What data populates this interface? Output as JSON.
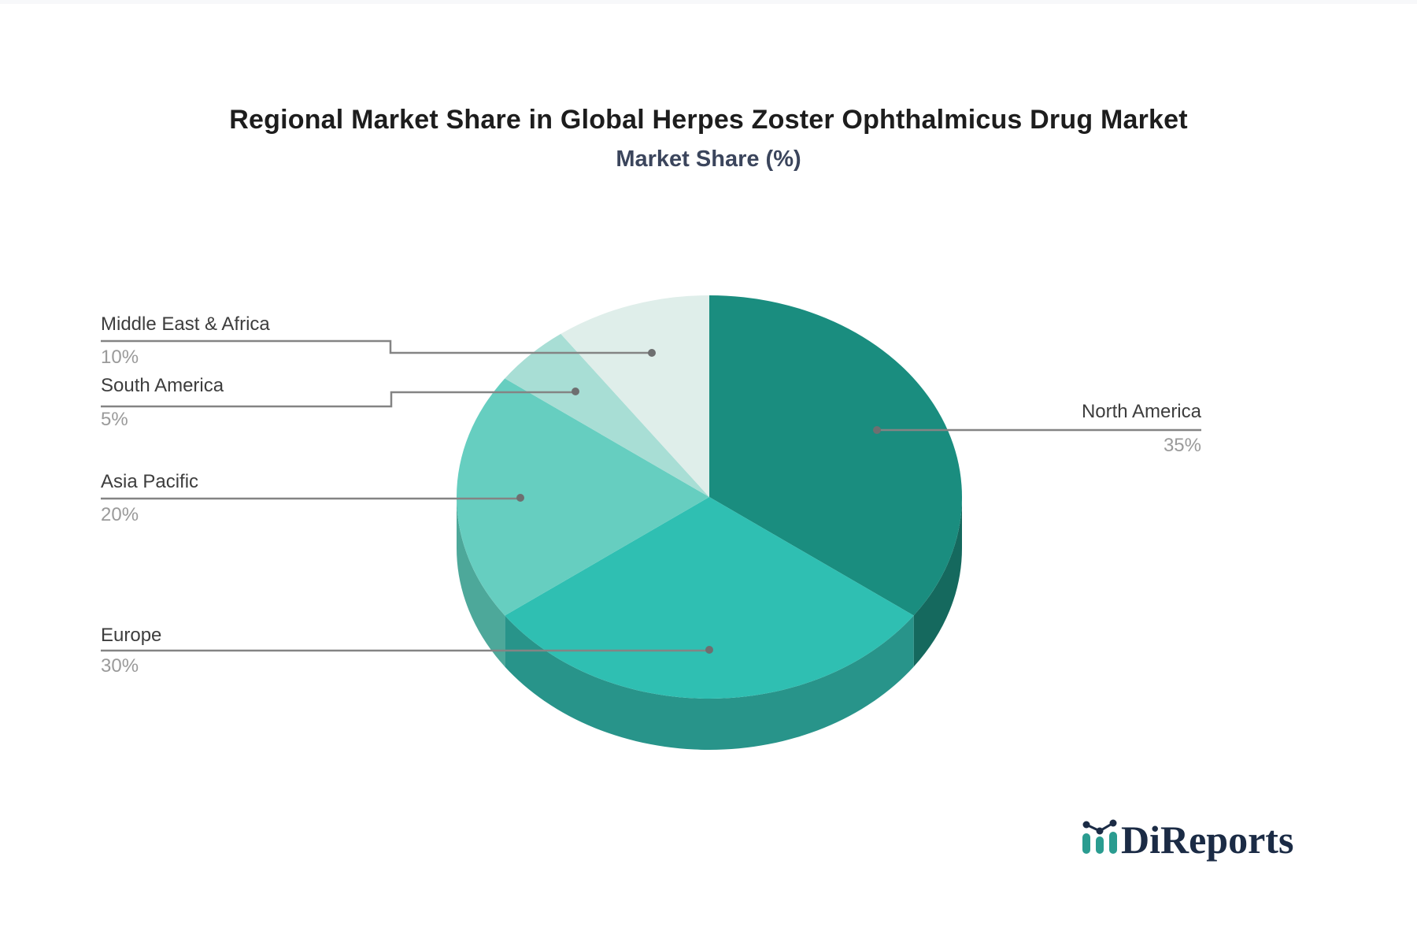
{
  "title": "Regional Market Share in Global Herpes Zoster Ophthalmicus Drug Market",
  "subtitle": "Market Share (%)",
  "chart_data": {
    "type": "pie",
    "style_3d": true,
    "start_angle_deg": 0,
    "direction": "clockwise",
    "unit": "%",
    "labels": [
      "North America",
      "Europe",
      "Asia Pacific",
      "South America",
      "Middle East & Africa"
    ],
    "values": [
      35,
      30,
      20,
      5,
      10
    ],
    "display_values": [
      "35%",
      "30%",
      "20%",
      "5%",
      "10%"
    ],
    "colors": [
      "#1a8d7f",
      "#2fbfb2",
      "#66cec0",
      "#a8ded5",
      "#dfeeea"
    ],
    "side_colors": [
      "#15695e",
      "#28948a",
      "#4da89a",
      "#8cc9bf",
      "#c3ded9"
    ],
    "legend_position": "callout-labels",
    "leader_line_color": "#848484"
  },
  "logo": {
    "text": "DiReports",
    "text_color": "#1b2b45",
    "accent_color": "#2a9c90"
  }
}
